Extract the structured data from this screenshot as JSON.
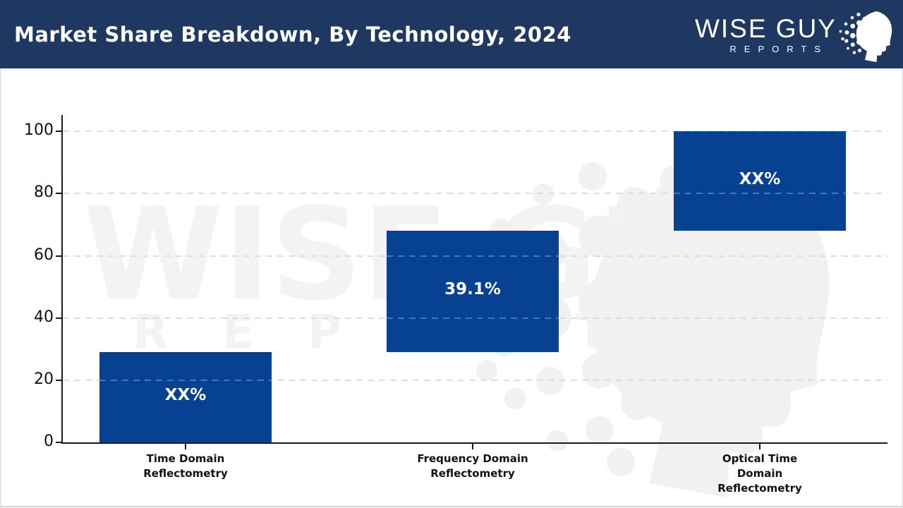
{
  "header": {
    "title": "Market Share Breakdown, By Technology, 2024",
    "bg_color": "#1f3862"
  },
  "brand": {
    "wordmark": "WISE GUY",
    "reports": "REPORTS",
    "icon": "dotted-face-profile-icon",
    "color": "#ffffff"
  },
  "watermark": {
    "wordmark": "WISE GUY",
    "reports": "R E P O R T S",
    "icon": "dotted-face-profile-watermark",
    "color": "#f3f3f3"
  },
  "chart_data": {
    "type": "bar",
    "subtype": "floating-segment-waterfall",
    "title": "Market Share Breakdown, By Technology, 2024",
    "categories": [
      "Time Domain Reflectometry",
      "Frequency Domain Reflectometry",
      "Optical Time Domain Reflectometry"
    ],
    "categories_lines": [
      [
        "Time Domain",
        "Reflectometry"
      ],
      [
        "Frequency Domain",
        "Reflectometry"
      ],
      [
        "Optical Time",
        "Domain",
        "Reflectometry"
      ]
    ],
    "series": [
      {
        "name": "Market share (%)",
        "segments": [
          {
            "category": "Time Domain Reflectometry",
            "from": 0,
            "to": 29.0,
            "label": "XX%"
          },
          {
            "category": "Frequency Domain Reflectometry",
            "from": 29.0,
            "to": 68.1,
            "label": "39.1%"
          },
          {
            "category": "Optical Time Domain Reflectometry",
            "from": 68.1,
            "to": 100,
            "label": "XX%"
          }
        ]
      }
    ],
    "yticks": [
      0,
      20,
      40,
      60,
      80,
      100
    ],
    "ylim": [
      0,
      105
    ],
    "grid": "horizontal dashed",
    "legend": "none",
    "bar_color": "#064291",
    "bar_label_color": "#ffffff",
    "axis_color": "#1a1a1a"
  }
}
